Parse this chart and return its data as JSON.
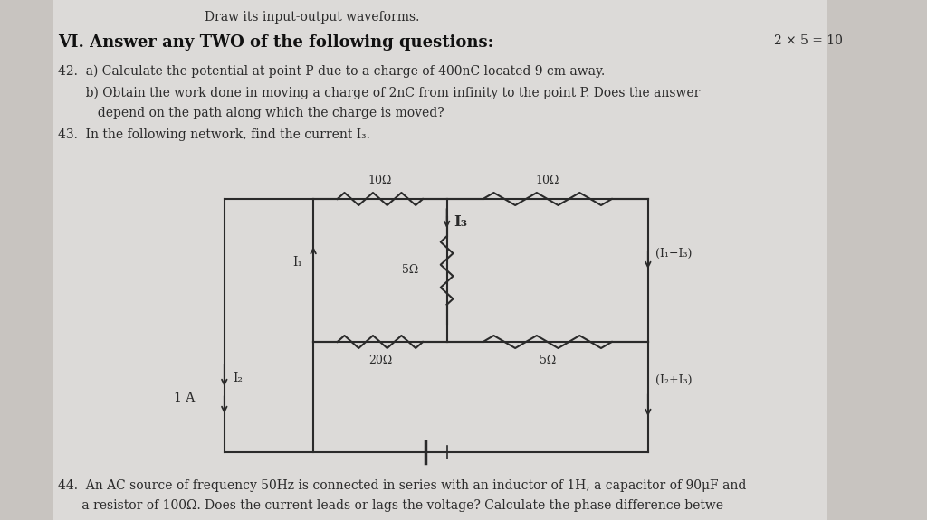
{
  "background_color": "#c8c4c0",
  "title_line": "Draw its input-output waveforms.",
  "section_header": "VI. Answer any TWO of the following questions:",
  "marks": "2 × 5 = 10",
  "q42_a": "42.  a) Calculate the potential at point P due to a charge of 400nC located 9 cm away.",
  "q42_b1": "       b) Obtain the work done in moving a charge of 2nC from infinity to the point P. Does the answer",
  "q42_b2": "          depend on the path along which the charge is moved?",
  "q43": "43.  In the following network, find the current I₃.",
  "q44": "44.  An AC source of frequency 50Hz is connected in series with an inductor of 1H, a capacitor of 90μF and",
  "q44b": "      a resistor of 100Ω. Does the current leads or lags the voltage? Calculate the phase difference betwe",
  "font_sizes": {
    "title": 10,
    "header": 13,
    "body": 10,
    "marks": 10,
    "circuit_label": 9,
    "circuit_large": 10
  }
}
